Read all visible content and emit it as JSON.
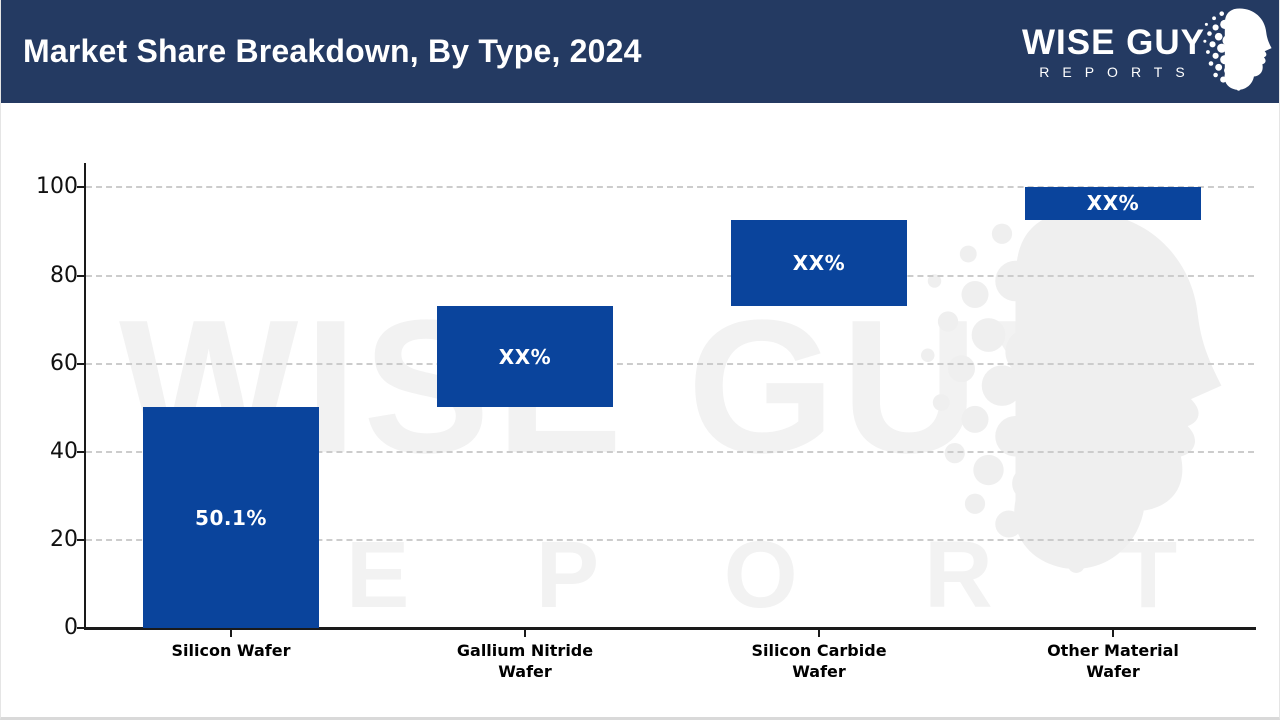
{
  "header": {
    "title": "Market Share Breakdown, By Type, 2024",
    "logo": {
      "name_line": "WISE GUY",
      "sub_line": "REPORTS",
      "face_icon": "dotted-head-profile-icon"
    }
  },
  "watermark": {
    "name_line": "WISE GUY",
    "sub_line": "R E P O R T S",
    "face_icon": "dotted-head-profile-icon"
  },
  "colors": {
    "header_bg": "#243A62",
    "header_text": "#FFFFFF",
    "bar_fill": "#0A449C",
    "bar_label_text": "#FFFFFF",
    "gridline": "#CCCCCC",
    "axis_line": "#1A1A1A",
    "tick_label_text": "#111111",
    "watermark_gray": "#F2F2F2",
    "page_bg": "#FFFFFF",
    "bottom_edge_line": "#D9D9D9"
  },
  "chart_data": {
    "type": "bar",
    "subtype": "waterfall",
    "title": "Market Share Breakdown, By Type, 2024",
    "categories": [
      "Silicon Wafer",
      "Gallium Nitride Wafer",
      "Silicon Carbide Wafer",
      "Other Material Wafer"
    ],
    "category_label_lines": [
      [
        "Silicon Wafer"
      ],
      [
        "Gallium Nitride",
        "Wafer"
      ],
      [
        "Silicon Carbide",
        "Wafer"
      ],
      [
        "Other Material",
        "Wafer"
      ]
    ],
    "segments": [
      {
        "category": "Silicon Wafer",
        "start": 0,
        "end": 50.1,
        "label": "50.1%"
      },
      {
        "category": "Gallium Nitride Wafer",
        "start": 50.1,
        "end": 73.0,
        "label": "XX%"
      },
      {
        "category": "Silicon Carbide Wafer",
        "start": 73.0,
        "end": 92.7,
        "label": "XX%"
      },
      {
        "category": "Other Material Wafer",
        "start": 92.7,
        "end": 100,
        "label": "XX%"
      }
    ],
    "ylim": [
      0,
      100
    ],
    "yticks": [
      0,
      20,
      40,
      60,
      80,
      100
    ],
    "xlabel": "",
    "ylabel": "",
    "grid": "horizontal-dashed",
    "legend": "none"
  }
}
